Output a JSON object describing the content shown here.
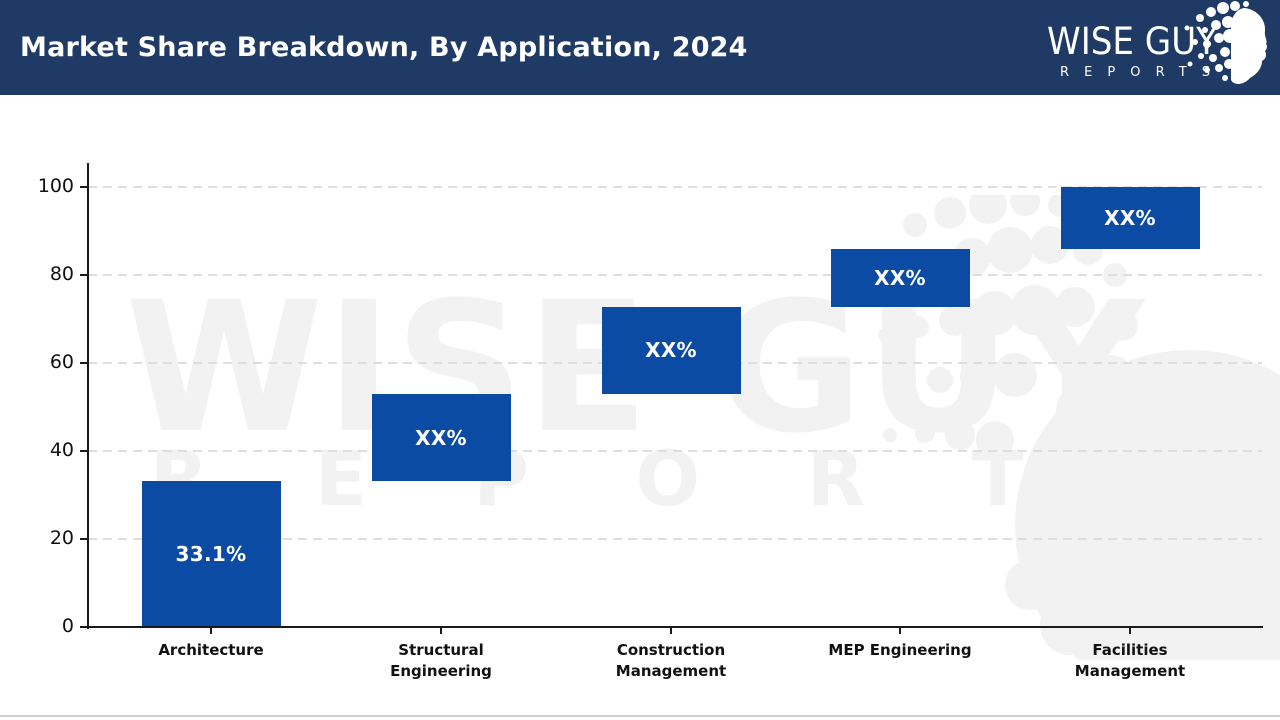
{
  "header": {
    "title": "Market Share Breakdown, By Application, 2024",
    "logo": {
      "brand": "WISE GUY",
      "sub": "REPORTS"
    }
  },
  "watermark": {
    "line1": "WISE GUY",
    "line2": "R E P O R T S"
  },
  "colors": {
    "header_bg": "#203a66",
    "bar": "#0b4ba4",
    "bar_label": "#ffffff",
    "grid": "#dedede",
    "axis": "#1a1a1a",
    "watermark": "#f2f2f2"
  },
  "chart_data": {
    "type": "bar",
    "variant": "floating-waterfall",
    "title": "Market Share Breakdown, By Application, 2024",
    "categories": [
      "Architecture",
      "Structural Engineering",
      "Construction Management",
      "MEP Engineering",
      "Facilities Management"
    ],
    "x_tick_labels": [
      [
        "Architecture"
      ],
      [
        "Structural",
        "Engineering"
      ],
      [
        "Construction",
        "Management"
      ],
      [
        "MEP Engineering"
      ],
      [
        "Facilities",
        "Management"
      ]
    ],
    "segments": [
      {
        "category": "Architecture",
        "start": 0,
        "end": 33.1,
        "label": "33.1%"
      },
      {
        "category": "Structural Engineering",
        "start": 33.1,
        "end": 53.0,
        "label": "XX%"
      },
      {
        "category": "Construction Management",
        "start": 53.0,
        "end": 72.7,
        "label": "XX%"
      },
      {
        "category": "MEP Engineering",
        "start": 72.7,
        "end": 86.0,
        "label": "XX%"
      },
      {
        "category": "Facilities Management",
        "start": 86.0,
        "end": 100.0,
        "label": "XX%"
      }
    ],
    "ylabel": "",
    "xlabel": "",
    "yticks": [
      0,
      20,
      40,
      60,
      80,
      100
    ],
    "ylim": [
      0,
      105
    ],
    "grid": "horizontal-dashed",
    "legend": "none",
    "bar_color": "#0b4ba4",
    "value_label_color": "#ffffff"
  }
}
